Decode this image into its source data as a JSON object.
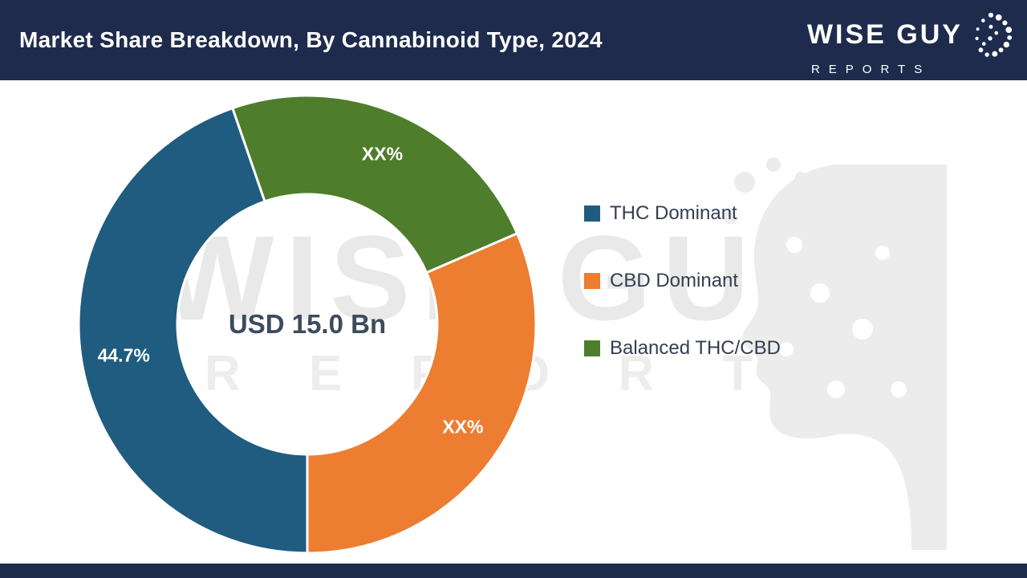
{
  "header": {
    "title": "Market Share Breakdown, By Cannabinoid Type, 2024",
    "logo": {
      "wordmark": "WISE GUY",
      "subtext": "REPORTS"
    }
  },
  "watermark": {
    "line1": "WISE GUY",
    "line2": "R E P O R T S"
  },
  "chart_data": {
    "type": "pie",
    "subtype": "donut",
    "title": "Market Share Breakdown, By Cannabinoid Type, 2024",
    "center_label": "USD 15.0 Bn",
    "start_angle_deg": 180,
    "inner_radius_ratio": 0.57,
    "legend_position": "right",
    "segments": [
      {
        "name": "THC Dominant",
        "value": 44.7,
        "label": "44.7%",
        "color": "#1f5c80"
      },
      {
        "name": "Balanced THC/CBD",
        "value": 23.8,
        "label": "XX%",
        "color": "#4e7d2c"
      },
      {
        "name": "CBD Dominant",
        "value": 31.5,
        "label": "XX%",
        "color": "#ed7d31"
      }
    ],
    "legend_order": [
      0,
      2,
      1
    ]
  }
}
